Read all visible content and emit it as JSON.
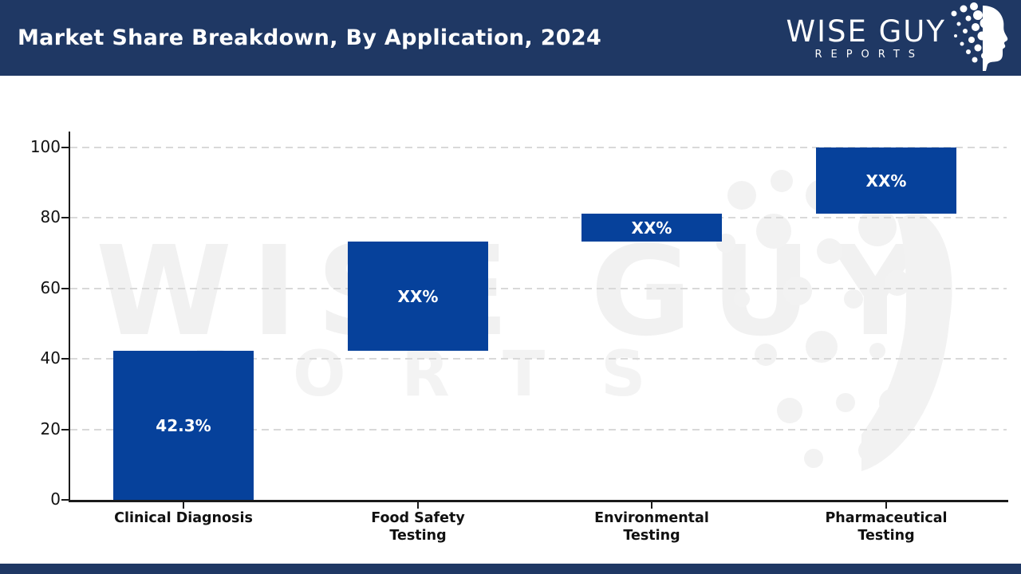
{
  "header": {
    "title": "Market Share Breakdown, By Application, 2024",
    "bg_color": "#1f3864",
    "logo": {
      "line1": "WISE GUY",
      "line2": "REPORTS",
      "icon": "dotted-face-profile"
    }
  },
  "watermark": {
    "line1": "WISE GUY",
    "line2": "PORTS"
  },
  "chart_data": {
    "type": "bar",
    "subtype": "waterfall",
    "title": "Market Share Breakdown, By Application, 2024",
    "categories": [
      "Clinical Diagnosis",
      "Food Safety Testing",
      "Environmental Testing",
      "Pharmaceutical Testing"
    ],
    "category_lines": [
      [
        "Clinical Diagnosis"
      ],
      [
        "Food Safety",
        "Testing"
      ],
      [
        "Environmental",
        "Testing"
      ],
      [
        "Pharmaceutical",
        "Testing"
      ]
    ],
    "bars": [
      {
        "category": "Clinical Diagnosis",
        "start": 0,
        "end": 42.3,
        "label": "42.3%"
      },
      {
        "category": "Food Safety Testing",
        "start": 42.3,
        "end": 73.3,
        "label": "XX%"
      },
      {
        "category": "Environmental Testing",
        "start": 73.3,
        "end": 81.2,
        "label": "XX%"
      },
      {
        "category": "Pharmaceutical Testing",
        "start": 81.2,
        "end": 100,
        "label": "XX%"
      }
    ],
    "yticks": [
      0,
      20,
      40,
      60,
      80,
      100
    ],
    "ylim": [
      0,
      104.5
    ],
    "xlabel": "",
    "ylabel": "",
    "grid": true,
    "legend": false,
    "bar_color": "#06419b",
    "grid_color": "#d9d9d9",
    "axis_color": "#1a1a1a"
  }
}
